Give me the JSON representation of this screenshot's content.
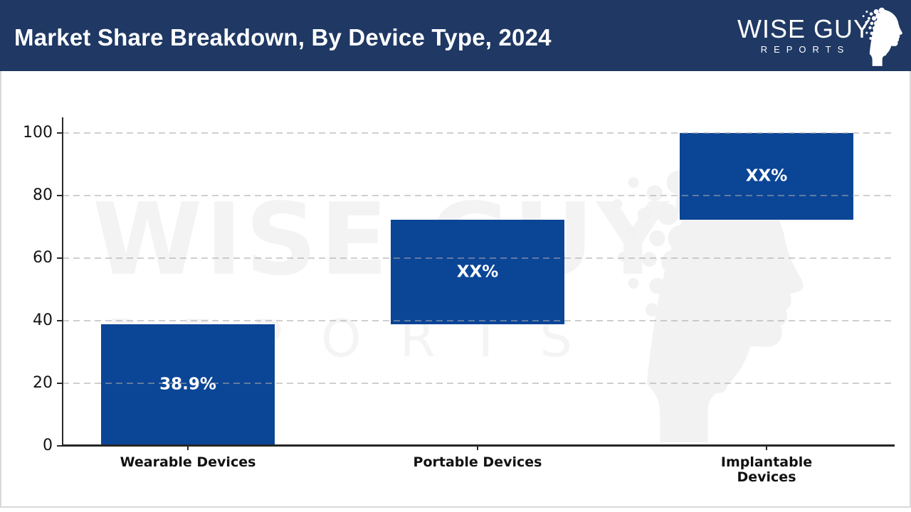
{
  "header": {
    "title": "Market Share Breakdown, By Device Type, 2024",
    "logo": {
      "line1": "WISE GUY",
      "line2": "REPORTS"
    }
  },
  "watermark": {
    "line1": "WISE GUY",
    "line2": "REPORTS"
  },
  "colors": {
    "header_bg": "#1f3864",
    "bar": "#0b4596",
    "bar_label": "#ffffff",
    "grid": "#d0d0d0",
    "axis": "#262626",
    "tick_text": "#141414",
    "watermark": "#f2f2f2",
    "logo": "#ffffff",
    "frame_border": "#d9d9d9"
  },
  "chart_data": {
    "type": "bar",
    "subtype": "floating-stacked-waterfall",
    "title": "Market Share Breakdown, By Device Type, 2024",
    "xlabel": "",
    "ylabel": "",
    "categories": [
      "Wearable Devices",
      "Portable Devices",
      "Implantable Devices"
    ],
    "values": [
      38.9,
      33.3,
      27.8
    ],
    "segments": [
      {
        "category": "Wearable Devices",
        "category_lines": [
          "Wearable Devices"
        ],
        "start": 0,
        "end": 38.9,
        "label": "38.9%"
      },
      {
        "category": "Portable Devices",
        "category_lines": [
          "Portable Devices"
        ],
        "start": 38.9,
        "end": 72.2,
        "label": "XX%"
      },
      {
        "category": "Implantable Devices",
        "category_lines": [
          "Implantable",
          "Devices"
        ],
        "start": 72.2,
        "end": 100,
        "label": "XX%"
      }
    ],
    "ylim": [
      0,
      100
    ],
    "yticks": [
      0,
      20,
      40,
      60,
      80,
      100
    ],
    "grid": "horizontal-dashed",
    "legend": "none"
  }
}
